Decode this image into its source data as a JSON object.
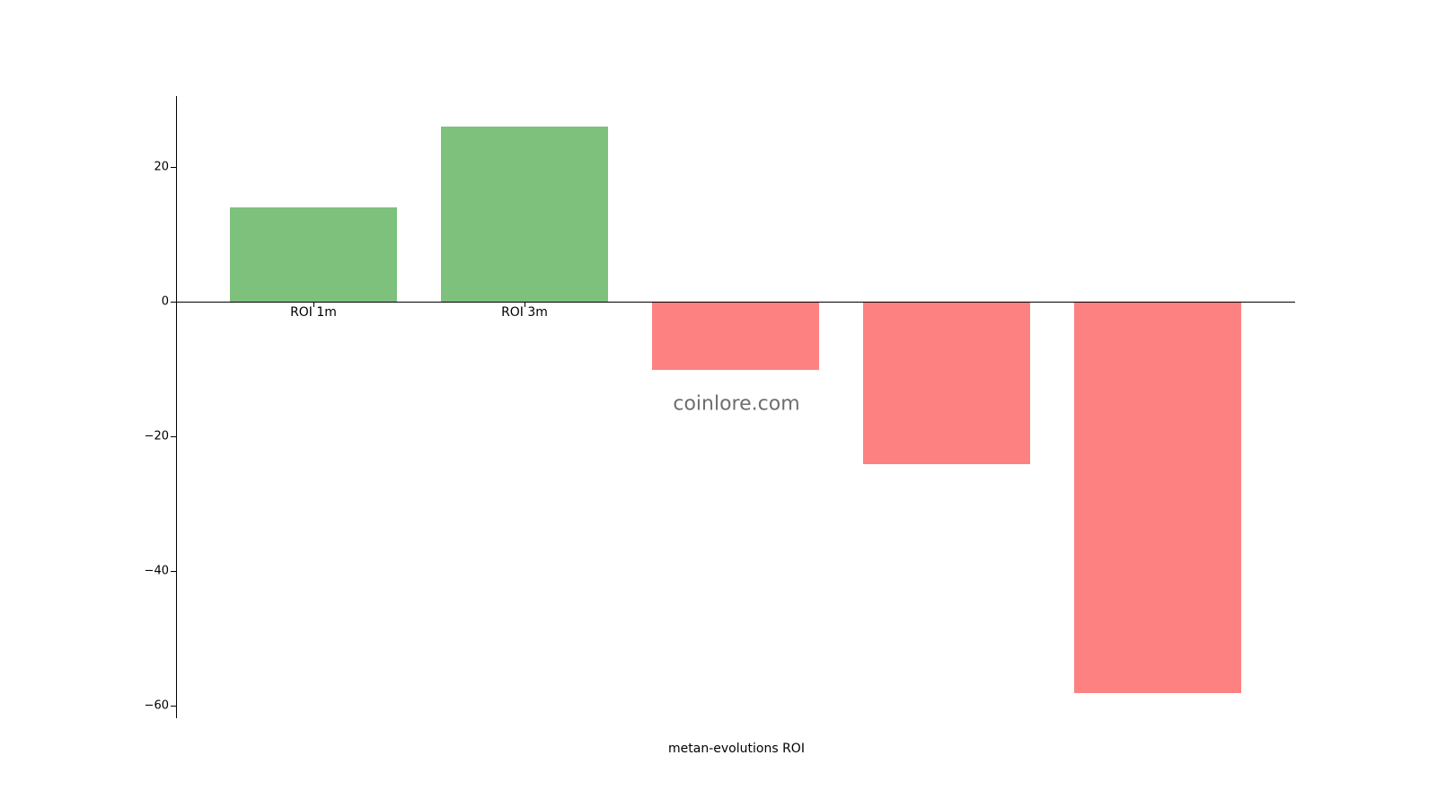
{
  "chart_data": {
    "type": "bar",
    "title": "metan-evolutions ROI",
    "categories": [
      "ROI 1m",
      "ROI 3m",
      "",
      "",
      ""
    ],
    "values": [
      14,
      26,
      -10,
      -24,
      -58
    ],
    "colors": {
      "positive": "#7dc17d",
      "negative": "#fd8181"
    },
    "y_ticks": [
      20,
      0,
      -20,
      -40,
      -60
    ],
    "ylim": [
      -61.9,
      30.5
    ],
    "grid": false,
    "legend_position": "none",
    "xlabel": "",
    "ylabel": ""
  },
  "watermark": {
    "text": "coinlore.com",
    "color": "#6e6e6e"
  },
  "axis": {
    "color": "#000000"
  }
}
